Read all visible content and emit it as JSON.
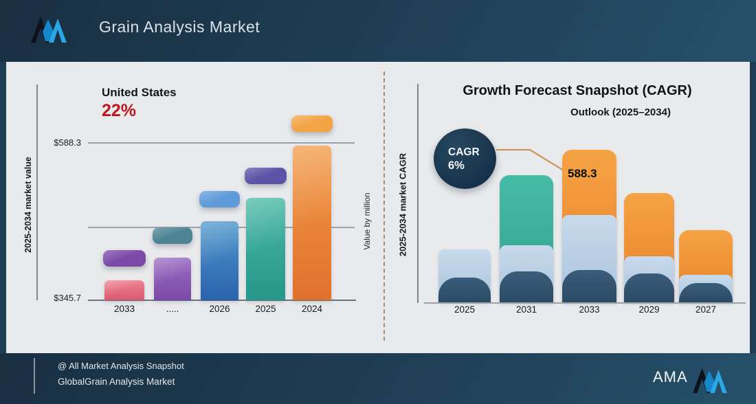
{
  "header": {
    "title": "Grain Analysis Market",
    "logo": "AMA"
  },
  "footer": {
    "line1": "@ All Market Analysis Snapshot",
    "line2": "GlobalGrain Analysis Market",
    "brand": "AMA"
  },
  "palette": {
    "band_bg": "#1e3c52",
    "content_bg": "#e9eaec",
    "accent_red": "#bf1722",
    "divider_dash": "#ab8a78",
    "connector": "#c9975f",
    "badge_bg": "#1c3a50",
    "axis": "#7b8692",
    "grid": "#9aa2ad",
    "logo_black": "#0c131b",
    "logo_blue": "#2ba7e4"
  },
  "chart_data": [
    {
      "type": "bar",
      "title": "United States",
      "highlight": "22%",
      "ylabel": "2025-2034 market value",
      "ylabel_right": "Value by million",
      "ytick_labels": [
        "$588.3",
        "$345.7"
      ],
      "ylim": [
        345.7,
        600
      ],
      "gridline_values": [
        588.3,
        458
      ],
      "grid": "on",
      "legend": "none",
      "categories": [
        "2033",
        ".....",
        "2026",
        "2025",
        "2024"
      ],
      "values": [
        376,
        411,
        468,
        504,
        584
      ],
      "bar_gradients": [
        [
          "#ef8090",
          "#d95a6e"
        ],
        [
          "#9a6cc2",
          "#7b4aa6"
        ],
        [
          "#4e97cc",
          "#2b62ac"
        ],
        [
          "#47b7a4",
          "#27968b"
        ],
        [
          "#f29a47",
          "#e0712d"
        ]
      ],
      "cap_colors": [
        "#7b4aa8",
        "#4d8394",
        "#5e9bd8",
        "#5b53a6",
        "#f2a445"
      ]
    },
    {
      "type": "stacked-bar",
      "title": "Growth Forecast Snapshot (CAGR)",
      "subtitle": "Outlook (2025–2034)",
      "ylabel": "2025-2034 market CAGR",
      "badge": {
        "label": "CAGR",
        "value": "6%"
      },
      "annotation": {
        "text": "588.3",
        "category": "2033"
      },
      "categories": [
        "2025",
        "2031",
        "2033",
        "2029",
        "2027"
      ],
      "units": "relative height (axis unlabeled)",
      "bars": [
        {
          "category": "2025",
          "accent": null,
          "total_h": 77,
          "mid_h": 77,
          "base_h": 36
        },
        {
          "category": "2031",
          "accent": "teal",
          "total_h": 185,
          "mid_h": 83,
          "base_h": 45
        },
        {
          "category": "2033",
          "accent": "orange",
          "total_h": 222,
          "mid_h": 127,
          "base_h": 47
        },
        {
          "category": "2029",
          "accent": "orange",
          "total_h": 159,
          "mid_h": 67,
          "base_h": 42
        },
        {
          "category": "2027",
          "accent": "orange",
          "total_h": 105,
          "mid_h": 40,
          "base_h": 28
        }
      ],
      "segment_gradients": {
        "navy": [
          "#3a5d7c",
          "#2b4a63"
        ],
        "lightblue": [
          "#c8daec",
          "#a9c3db"
        ],
        "teal": [
          "#46bba6",
          "#2fa18c"
        ],
        "orange": [
          "#f5a344",
          "#e8822a"
        ]
      }
    }
  ]
}
